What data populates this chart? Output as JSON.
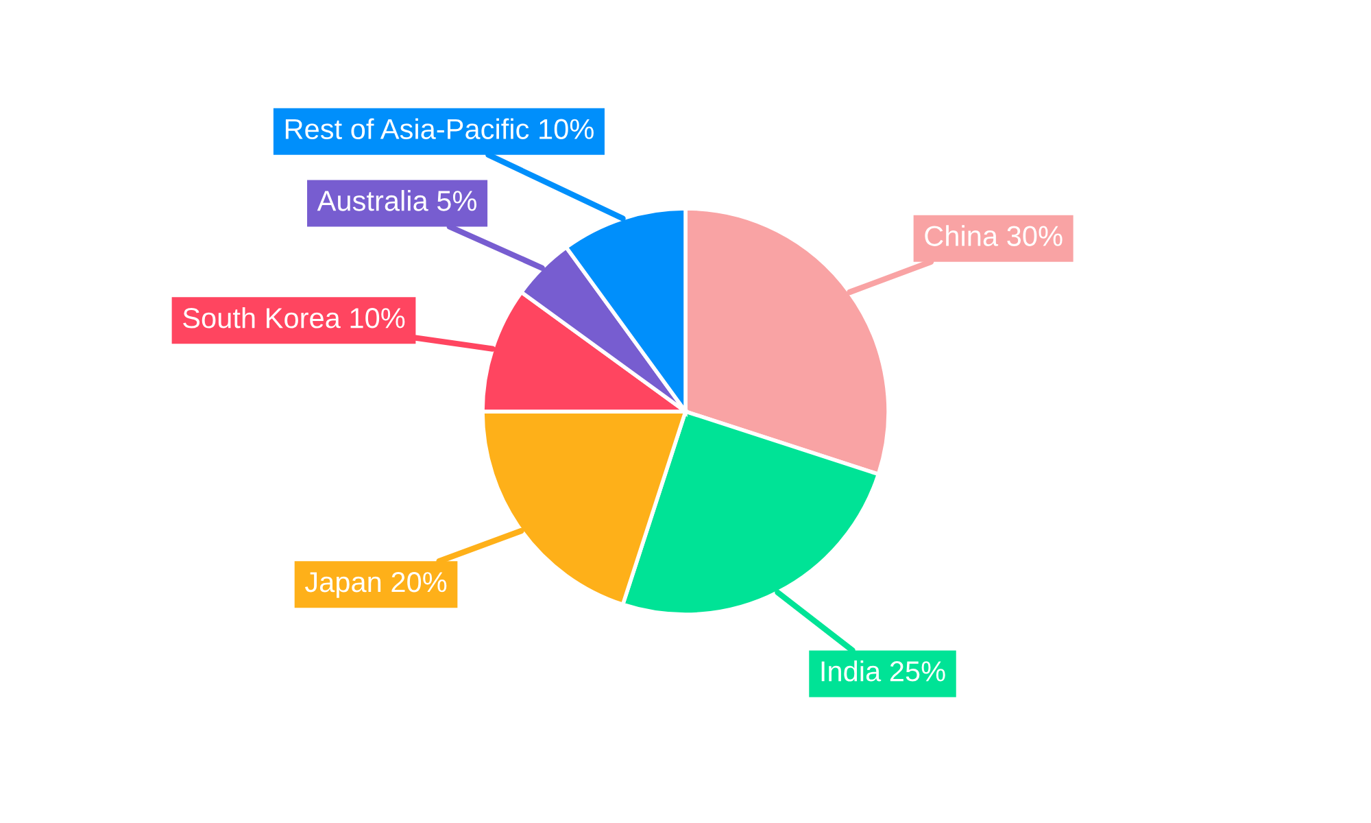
{
  "chart_data": {
    "type": "pie",
    "categories": [
      "China",
      "India",
      "Japan",
      "South Korea",
      "Australia",
      "Rest of Asia-Pacific"
    ],
    "values": [
      30,
      25,
      20,
      10,
      5,
      10
    ],
    "colors": [
      "#f9a3a4",
      "#00e396",
      "#feb019",
      "#ff4560",
      "#775dd0",
      "#008ffb"
    ],
    "value_labels": [
      "30%",
      "25%",
      "20%",
      "10%",
      "5%",
      "10%"
    ],
    "legend": false
  }
}
